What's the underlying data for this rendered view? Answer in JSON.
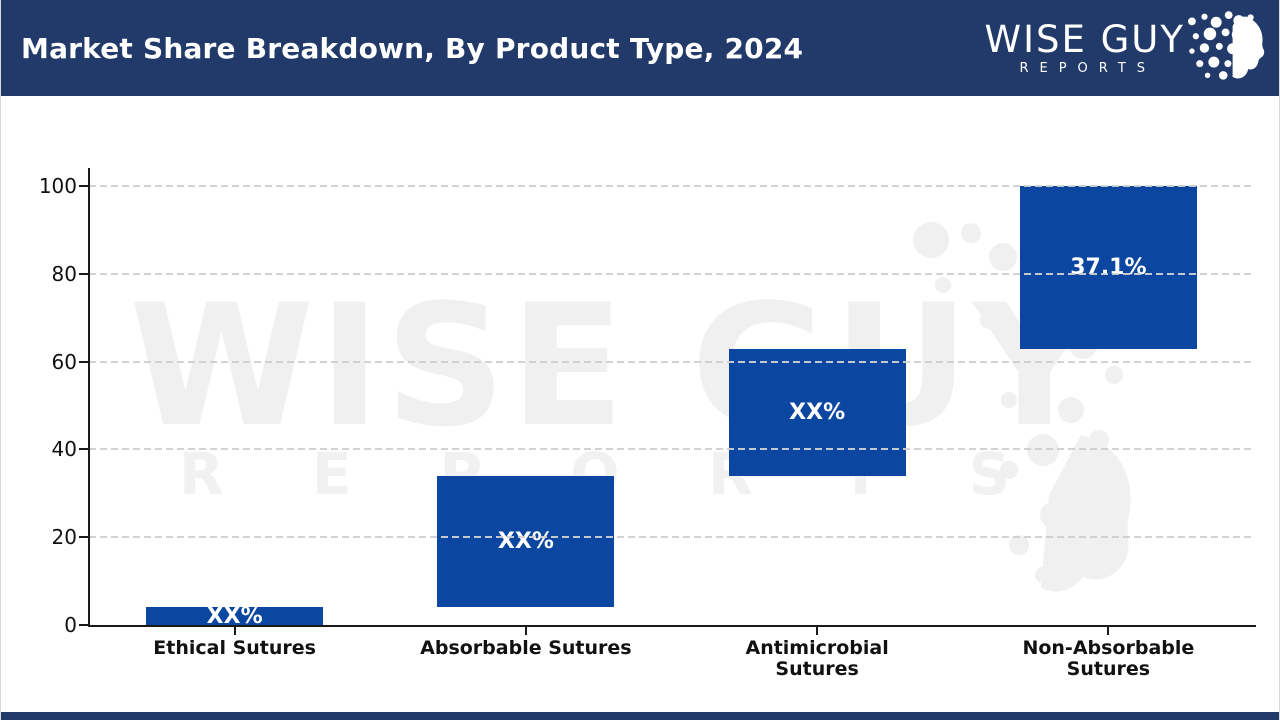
{
  "header": {
    "title": "Market Share Breakdown, By Product Type, 2024",
    "logo": {
      "name": "Wise Guy Reports logo",
      "line1": "WISE GUY",
      "line2": "REPORTS"
    }
  },
  "watermark": {
    "line1": "WISE GUY",
    "line2": "REPORTS"
  },
  "colors": {
    "header_bg": "#213a69",
    "footer_bg": "#213a69",
    "bar": "#0b47a0",
    "bar_label_text": "#ffffff",
    "grid": "#d0d0d0",
    "axis": "#1a1a1a",
    "watermark": "#f0f0f0"
  },
  "chart_data": {
    "type": "bar",
    "subtype": "floating-waterfall",
    "title": "Market Share Breakdown, By Product Type, 2024",
    "categories": [
      "Ethical Sutures",
      "Absorbable Sutures",
      "Antimicrobial\nSutures",
      "Non-Absorbable\nSutures"
    ],
    "segments": [
      {
        "category": "Ethical Sutures",
        "start": 0,
        "end": 4,
        "label": "XX%"
      },
      {
        "category": "Absorbable Sutures",
        "start": 4,
        "end": 34,
        "label": "XX%"
      },
      {
        "category": "Antimicrobial Sutures",
        "start": 34,
        "end": 62.9,
        "label": "XX%"
      },
      {
        "category": "Non-Absorbable Sutures",
        "start": 62.9,
        "end": 100,
        "label": "37.1%"
      }
    ],
    "ylim": [
      0,
      100
    ],
    "yticks": [
      0,
      20,
      40,
      60,
      80,
      100
    ],
    "xlabel": "",
    "ylabel": "",
    "grid": "dashed-horizontal-above-bars",
    "legend": "none"
  }
}
